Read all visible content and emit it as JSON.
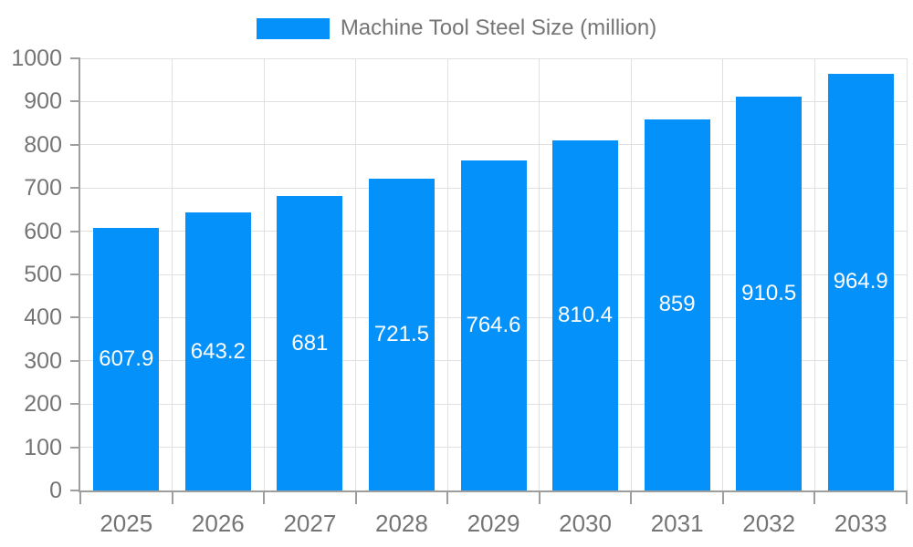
{
  "chart_data": {
    "type": "bar",
    "title": "",
    "series_name": "Machine Tool Steel Size (million)",
    "legend": [
      "Machine Tool Steel Size (million)"
    ],
    "legend_position": "top-center",
    "categories": [
      "2025",
      "2026",
      "2027",
      "2028",
      "2029",
      "2030",
      "2031",
      "2032",
      "2033"
    ],
    "values": [
      607.9,
      643.2,
      681,
      721.5,
      764.6,
      810.4,
      859,
      910.5,
      964.9
    ],
    "value_labels": [
      "607.9",
      "643.2",
      "681",
      "721.5",
      "764.6",
      "810.4",
      "859",
      "910.5",
      "964.9"
    ],
    "xlabel": "",
    "ylabel": "",
    "ylim": [
      0,
      1000
    ],
    "y_tick_labels": [
      "0",
      "100",
      "200",
      "300",
      "400",
      "500",
      "600",
      "700",
      "800",
      "900",
      "1000"
    ],
    "grid": true,
    "bar_color": "#0591fa",
    "value_label_color": "#ffffff",
    "axis_text_color": "#757575",
    "grid_color": "#e0e0e0",
    "axis_line_color": "#9e9e9e",
    "background_color": "#ffffff"
  }
}
